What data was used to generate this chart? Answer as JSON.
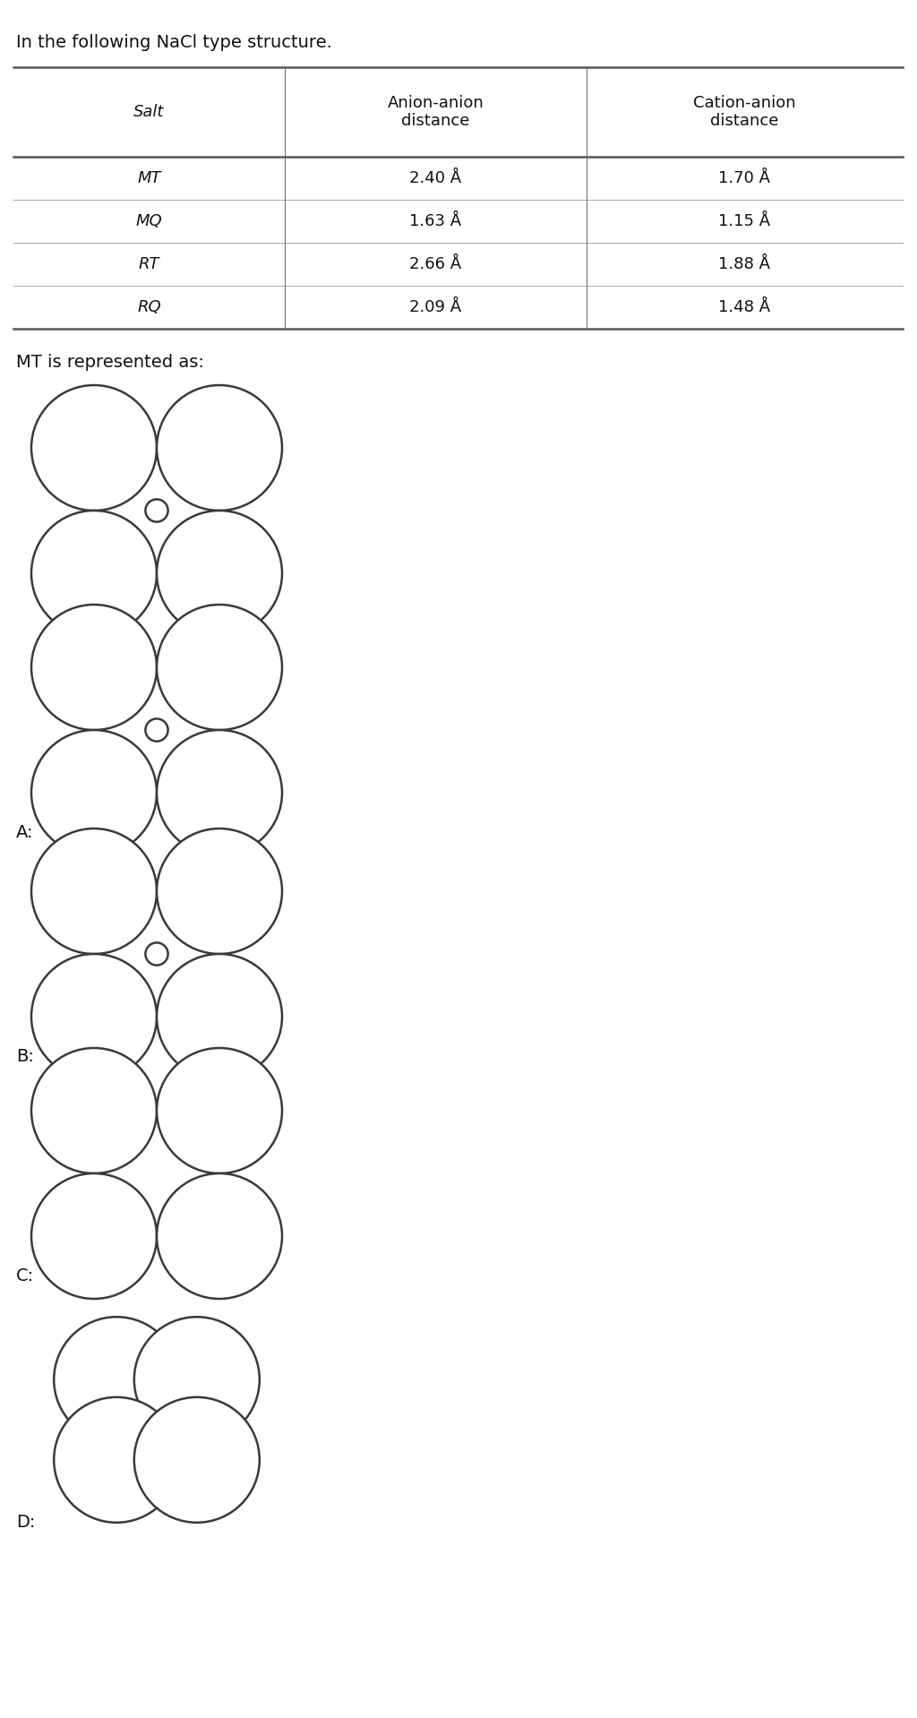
{
  "title": "In the following NaCl type structure.",
  "table": {
    "headers": [
      "Salt",
      "Anion-anion\ndistance",
      "Cation-anion\ndistance"
    ],
    "rows": [
      [
        "MT",
        "2.40 Å",
        "1.70 Å"
      ],
      [
        "MQ",
        "1.63 Å",
        "1.15 Å"
      ],
      [
        "RT",
        "2.66 Å",
        "1.88 Å"
      ],
      [
        "RQ",
        "2.09 Å",
        "1.48 Å"
      ]
    ]
  },
  "mt_label": "MT is represented as:",
  "options": [
    "A:",
    "B:",
    "C:",
    "D:"
  ],
  "bg_color": "#ffffff",
  "circle_edge_color": "#3a3a3a",
  "circle_lw": 1.8,
  "title_fontsize": 14,
  "table_fontsize": 13,
  "label_fontsize": 14
}
